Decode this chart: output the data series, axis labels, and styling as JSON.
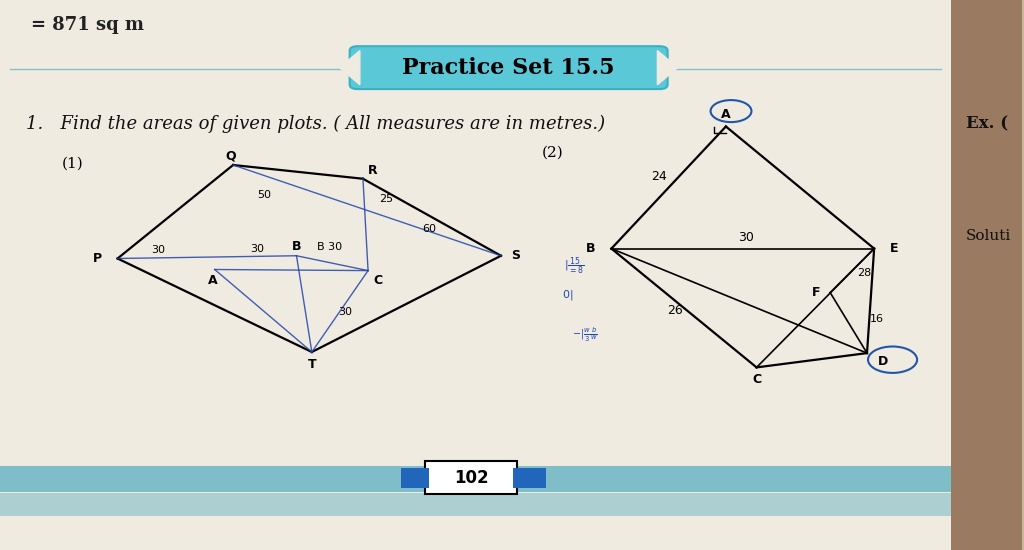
{
  "bg_color": "#c8b89a",
  "page_color": "#f0ebe0",
  "title": "Practice Set 15.5",
  "title_bg": "#5bc8d8",
  "title_fontsize": 16,
  "header_text": "= 871 sq m",
  "question": "1.   Find the areas of given plots. ( All measures are in metres.)",
  "question_fontsize": 13,
  "ex_text": "Ex. (",
  "solut_text": "Soluti",
  "label1": "(1)",
  "label2": "(2)",
  "page_num": "102",
  "right_strip_color": "#9a7a60",
  "blue_color": "#5ab0c0"
}
